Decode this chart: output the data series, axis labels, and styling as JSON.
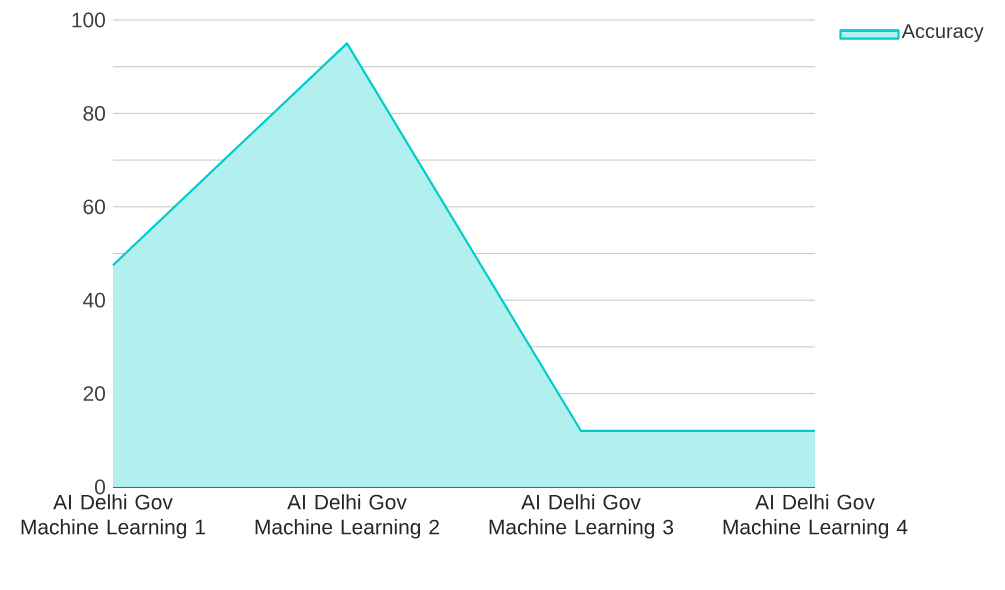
{
  "chart_data": {
    "type": "area",
    "categories": [
      "AI Delhi Gov Machine Learning 1",
      "AI Delhi Gov Machine Learning 2",
      "AI Delhi Gov Machine Learning 3",
      "AI Delhi Gov Machine Learning 4"
    ],
    "series": [
      {
        "name": "Accuracy",
        "color": "#00cccc",
        "values": [
          47.5,
          95,
          12,
          12
        ]
      }
    ],
    "ylim": [
      0,
      100
    ],
    "yticks": [
      0,
      {
        "value": 10,
        "label": null
      },
      20,
      {
        "value": 30,
        "label": null
      },
      40,
      {
        "value": 50,
        "label": null
      },
      60,
      {
        "value": 70,
        "label": null
      },
      80,
      {
        "value": 90,
        "label": null
      },
      100
    ],
    "grid": "y",
    "legend": "top right",
    "marker": "none",
    "line_style": "solid"
  }
}
